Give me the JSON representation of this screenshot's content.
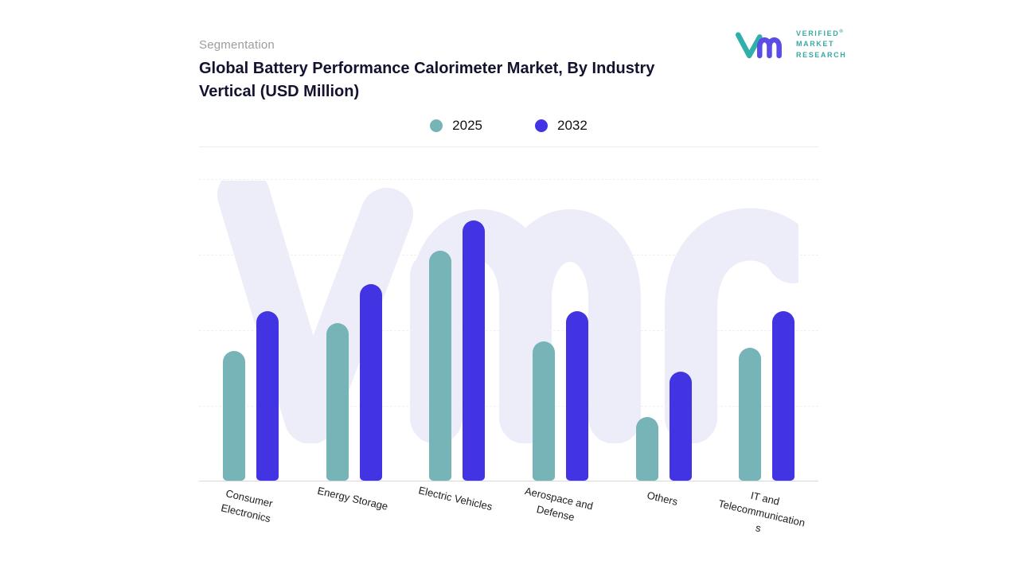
{
  "header": {
    "eyebrow": "Segmentation",
    "title": "Global Battery Performance Calorimeter Market, By Industry Vertical (USD Million)"
  },
  "logo": {
    "lines": [
      "VERIFIED",
      "MARKET",
      "RESEARCH"
    ],
    "registered": "®"
  },
  "chart_data": {
    "type": "bar",
    "title": "Global Battery Performance Calorimeter Market, By Industry Vertical (USD Million)",
    "categories": [
      "Consumer Electronics",
      "Energy Storage",
      "Electric Vehicles",
      "Aerospace and Defense",
      "Others",
      "IT and Telecommunications"
    ],
    "series": [
      {
        "name": "2025",
        "color": "#76b4b7",
        "values": [
          43,
          52,
          76,
          46,
          21,
          44
        ]
      },
      {
        "name": "2032",
        "color": "#4334e3",
        "values": [
          56,
          65,
          86,
          56,
          36,
          56
        ]
      }
    ],
    "xlabel": "",
    "ylabel": "",
    "units": "USD Million",
    "ylim": [
      0,
      100
    ],
    "grid": "dashed-horizontal-faint",
    "legend_position": "top-center",
    "bar_style": "rounded-top"
  },
  "colors": {
    "series_2025": "#76b4b7",
    "series_2032": "#4334e3",
    "watermark": "#edecf9",
    "axis_line": "#d9d9d9",
    "brand_teal": "#2fb0aa",
    "brand_purple": "#5b4ce6"
  }
}
